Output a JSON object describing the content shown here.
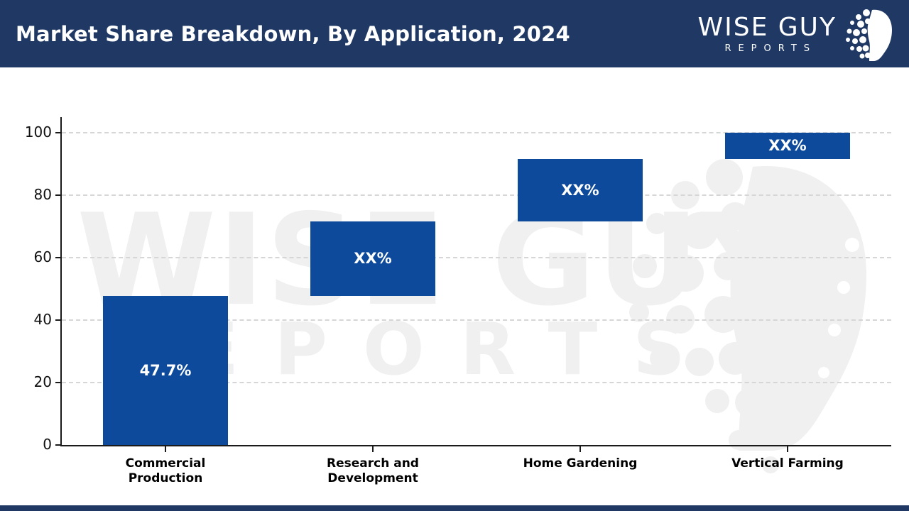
{
  "header": {
    "title": "Market Share Breakdown, By Application, 2024",
    "bg_color": "#1f3864",
    "logo": {
      "line1": "WISE GUY",
      "line2": "REPORTS"
    }
  },
  "watermark": {
    "line1": "WISE GUY",
    "line2": "REPORTS"
  },
  "footer": {
    "bg_color": "#1f3864"
  },
  "chart_data": {
    "type": "bar",
    "subtype": "waterfall",
    "title": "Market Share Breakdown, By Application, 2024",
    "categories": [
      "Commercial Production",
      "Research and Development",
      "Home Gardening",
      "Vertical Farming"
    ],
    "category_display": [
      "Commercial\nProduction",
      "Research and\nDevelopment",
      "Home Gardening",
      "Vertical Farming"
    ],
    "segments": [
      {
        "category": "Commercial Production",
        "start": 0,
        "end": 47.7,
        "label": "47.7%"
      },
      {
        "category": "Research and Development",
        "start": 47.7,
        "end": 71.7,
        "label": "XX%"
      },
      {
        "category": "Home Gardening",
        "start": 71.7,
        "end": 91.7,
        "label": "XX%"
      },
      {
        "category": "Vertical Farming",
        "start": 91.7,
        "end": 100,
        "label": "XX%"
      }
    ],
    "ylabel": "",
    "xlabel": "",
    "ylim": [
      0,
      100
    ],
    "yticks": [
      0,
      20,
      40,
      60,
      80,
      100
    ],
    "grid": "horizontal-dashed",
    "legend": "none",
    "bar_color": "#0d4a9c",
    "bar_label_color": "#ffffff"
  }
}
